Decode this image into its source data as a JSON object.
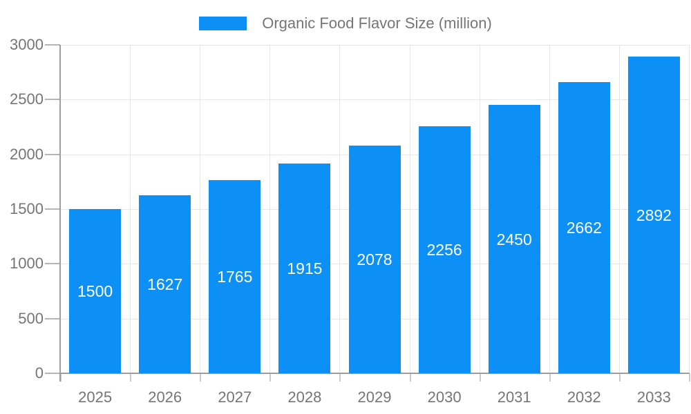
{
  "legend": {
    "label": "Organic Food Flavor Size (million)"
  },
  "colors": {
    "bar": "#0d90f5",
    "grid": "#e6e6e6",
    "axis": "#9e9e9e",
    "y_tick": "#b5b5b5",
    "x_tick": "#c9c9c9",
    "label_text": "#757575",
    "value_text": "#ffffff",
    "background": "#ffffff"
  },
  "chart_data": {
    "type": "bar",
    "title": "",
    "series_name": "Organic Food Flavor Size (million)",
    "categories": [
      "2025",
      "2026",
      "2027",
      "2028",
      "2029",
      "2030",
      "2031",
      "2032",
      "2033"
    ],
    "values": [
      1500,
      1627,
      1765,
      1915,
      2078,
      2256,
      2450,
      2662,
      2892
    ],
    "xlabel": "",
    "ylabel": "",
    "ylim": [
      0,
      3000
    ],
    "ytick_step": 500,
    "yticks": [
      0,
      500,
      1000,
      1500,
      2000,
      2500,
      3000
    ],
    "grid": true,
    "legend_position": "top",
    "value_label_position": "inside-center"
  }
}
